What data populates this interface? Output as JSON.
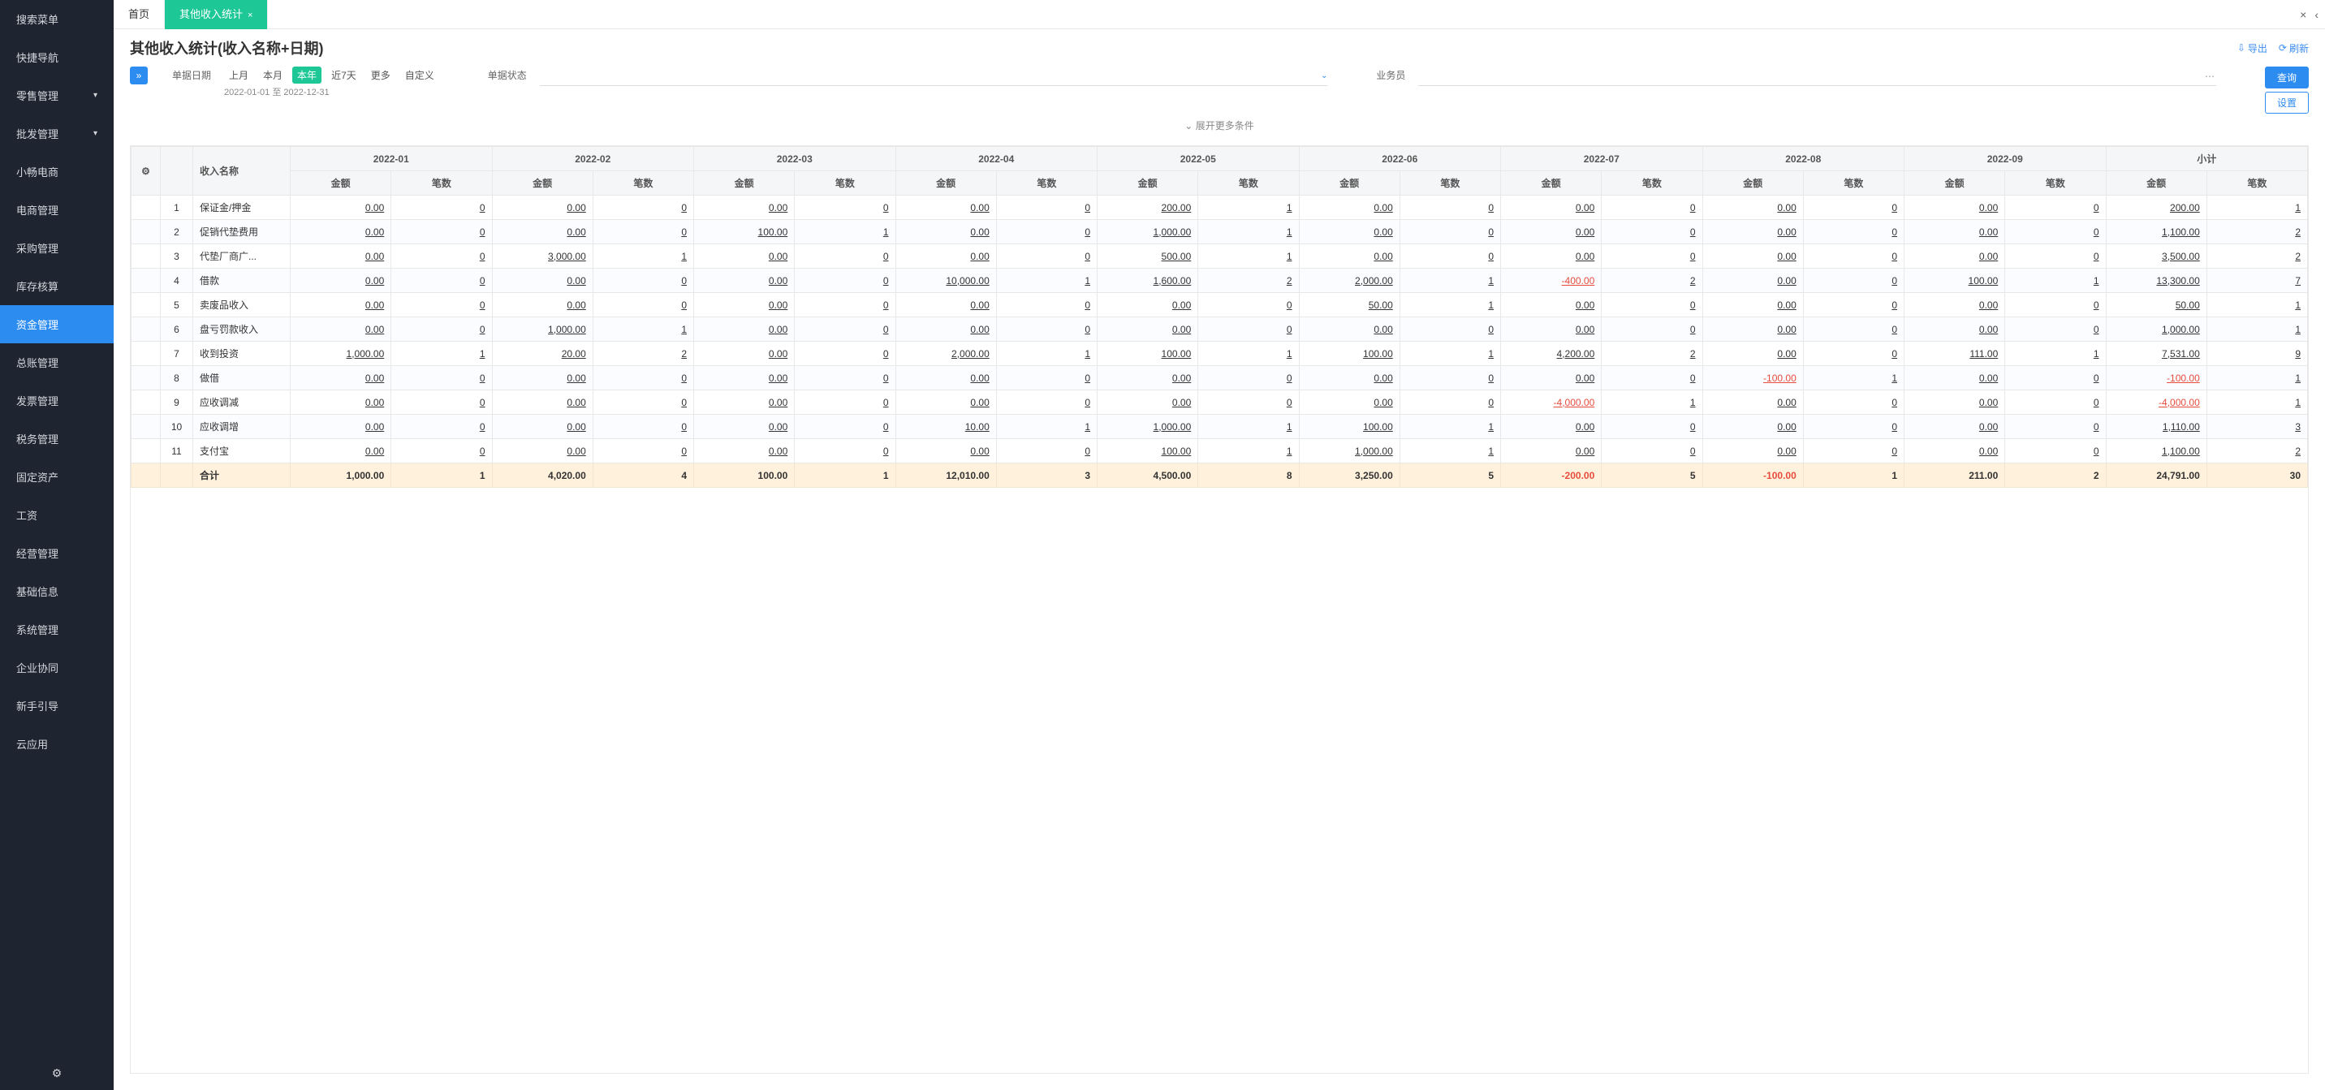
{
  "sidebar": {
    "items": [
      {
        "label": "搜索菜单",
        "expand": false
      },
      {
        "label": "快捷导航",
        "expand": false
      },
      {
        "label": "零售管理",
        "expand": true
      },
      {
        "label": "批发管理",
        "expand": true
      },
      {
        "label": "小畅电商",
        "expand": false
      },
      {
        "label": "电商管理",
        "expand": false
      },
      {
        "label": "采购管理",
        "expand": false
      },
      {
        "label": "库存核算",
        "expand": false
      },
      {
        "label": "资金管理",
        "expand": false,
        "active": true
      },
      {
        "label": "总账管理",
        "expand": false
      },
      {
        "label": "发票管理",
        "expand": false
      },
      {
        "label": "税务管理",
        "expand": false
      },
      {
        "label": "固定资产",
        "expand": false
      },
      {
        "label": "工资",
        "expand": false
      },
      {
        "label": "经营管理",
        "expand": false
      },
      {
        "label": "基础信息",
        "expand": false
      },
      {
        "label": "系统管理",
        "expand": false
      },
      {
        "label": "企业协同",
        "expand": false
      },
      {
        "label": "新手引导",
        "expand": false
      },
      {
        "label": "云应用",
        "expand": false
      }
    ]
  },
  "tabs": [
    {
      "label": "首页",
      "active": false,
      "closeable": false
    },
    {
      "label": "其他收入统计",
      "active": true,
      "closeable": true
    }
  ],
  "page": {
    "title": "其他收入统计(收入名称+日期)",
    "export": "导出",
    "refresh": "刷新"
  },
  "filter": {
    "date_label": "单据日期",
    "date_opts": [
      "上月",
      "本月",
      "本年",
      "近7天",
      "更多",
      "自定义"
    ],
    "date_sel": 2,
    "date_range": "2022-01-01 至 2022-12-31",
    "status_label": "单据状态",
    "sales_label": "业务员",
    "query_btn": "查询",
    "setting_btn": "设置",
    "expand": "展开更多条件"
  },
  "table": {
    "name_header": "收入名称",
    "sub_headers": [
      "金额",
      "笔数"
    ],
    "months": [
      "2022-01",
      "2022-02",
      "2022-03",
      "2022-04",
      "2022-05",
      "2022-06",
      "2022-07",
      "2022-08",
      "2022-09"
    ],
    "subtotal": "小计",
    "footer_label": "合计",
    "colors": {
      "neg": "#e74c3c"
    },
    "rows": [
      {
        "name": "保证金/押金",
        "d": [
          [
            0,
            0
          ],
          [
            0,
            0
          ],
          [
            0,
            0
          ],
          [
            0,
            0
          ],
          [
            200,
            1
          ],
          [
            0,
            0
          ],
          [
            0,
            0
          ],
          [
            0,
            0
          ],
          [
            0,
            0
          ]
        ],
        "sub": [
          200,
          1
        ]
      },
      {
        "name": "促销代垫费用",
        "d": [
          [
            0,
            0
          ],
          [
            0,
            0
          ],
          [
            100,
            1
          ],
          [
            0,
            0
          ],
          [
            1000,
            1
          ],
          [
            0,
            0
          ],
          [
            0,
            0
          ],
          [
            0,
            0
          ],
          [
            0,
            0
          ]
        ],
        "sub": [
          1100,
          2
        ]
      },
      {
        "name": "代垫厂商广...",
        "d": [
          [
            0,
            0
          ],
          [
            3000,
            1
          ],
          [
            0,
            0
          ],
          [
            0,
            0
          ],
          [
            500,
            1
          ],
          [
            0,
            0
          ],
          [
            0,
            0
          ],
          [
            0,
            0
          ],
          [
            0,
            0
          ]
        ],
        "sub": [
          3500,
          2
        ]
      },
      {
        "name": "借款",
        "d": [
          [
            0,
            0
          ],
          [
            0,
            0
          ],
          [
            0,
            0
          ],
          [
            10000,
            1
          ],
          [
            1600,
            2
          ],
          [
            2000,
            1
          ],
          [
            -400,
            2
          ],
          [
            0,
            0
          ],
          [
            100,
            1
          ]
        ],
        "sub": [
          13300,
          7
        ]
      },
      {
        "name": "卖废品收入",
        "d": [
          [
            0,
            0
          ],
          [
            0,
            0
          ],
          [
            0,
            0
          ],
          [
            0,
            0
          ],
          [
            0,
            0
          ],
          [
            50,
            1
          ],
          [
            0,
            0
          ],
          [
            0,
            0
          ],
          [
            0,
            0
          ]
        ],
        "sub": [
          50,
          1
        ]
      },
      {
        "name": "盘亏罚款收入",
        "d": [
          [
            0,
            0
          ],
          [
            1000,
            1
          ],
          [
            0,
            0
          ],
          [
            0,
            0
          ],
          [
            0,
            0
          ],
          [
            0,
            0
          ],
          [
            0,
            0
          ],
          [
            0,
            0
          ],
          [
            0,
            0
          ]
        ],
        "sub": [
          1000,
          1
        ]
      },
      {
        "name": "收到投资",
        "d": [
          [
            1000,
            1
          ],
          [
            20,
            2
          ],
          [
            0,
            0
          ],
          [
            2000,
            1
          ],
          [
            100,
            1
          ],
          [
            100,
            1
          ],
          [
            4200,
            2
          ],
          [
            0,
            0
          ],
          [
            111,
            1
          ]
        ],
        "sub": [
          7531,
          9
        ]
      },
      {
        "name": "做借",
        "d": [
          [
            0,
            0
          ],
          [
            0,
            0
          ],
          [
            0,
            0
          ],
          [
            0,
            0
          ],
          [
            0,
            0
          ],
          [
            0,
            0
          ],
          [
            0,
            0
          ],
          [
            -100,
            1
          ],
          [
            0,
            0
          ]
        ],
        "sub": [
          -100,
          1
        ]
      },
      {
        "name": "应收调减",
        "d": [
          [
            0,
            0
          ],
          [
            0,
            0
          ],
          [
            0,
            0
          ],
          [
            0,
            0
          ],
          [
            0,
            0
          ],
          [
            0,
            0
          ],
          [
            -4000,
            1
          ],
          [
            0,
            0
          ],
          [
            0,
            0
          ]
        ],
        "sub": [
          -4000,
          1
        ]
      },
      {
        "name": "应收调增",
        "d": [
          [
            0,
            0
          ],
          [
            0,
            0
          ],
          [
            0,
            0
          ],
          [
            10,
            1
          ],
          [
            1000,
            1
          ],
          [
            100,
            1
          ],
          [
            0,
            0
          ],
          [
            0,
            0
          ],
          [
            0,
            0
          ]
        ],
        "sub": [
          1110,
          3
        ]
      },
      {
        "name": "支付宝",
        "d": [
          [
            0,
            0
          ],
          [
            0,
            0
          ],
          [
            0,
            0
          ],
          [
            0,
            0
          ],
          [
            100,
            1
          ],
          [
            1000,
            1
          ],
          [
            0,
            0
          ],
          [
            0,
            0
          ],
          [
            0,
            0
          ]
        ],
        "sub": [
          1100,
          2
        ]
      }
    ],
    "footer": {
      "d": [
        [
          1000,
          1
        ],
        [
          4020,
          4
        ],
        [
          100,
          1
        ],
        [
          12010,
          3
        ],
        [
          4500,
          8
        ],
        [
          3250,
          5
        ],
        [
          -200,
          5
        ],
        [
          -100,
          1
        ],
        [
          211,
          2
        ]
      ],
      "sub": [
        24791,
        30
      ]
    }
  }
}
